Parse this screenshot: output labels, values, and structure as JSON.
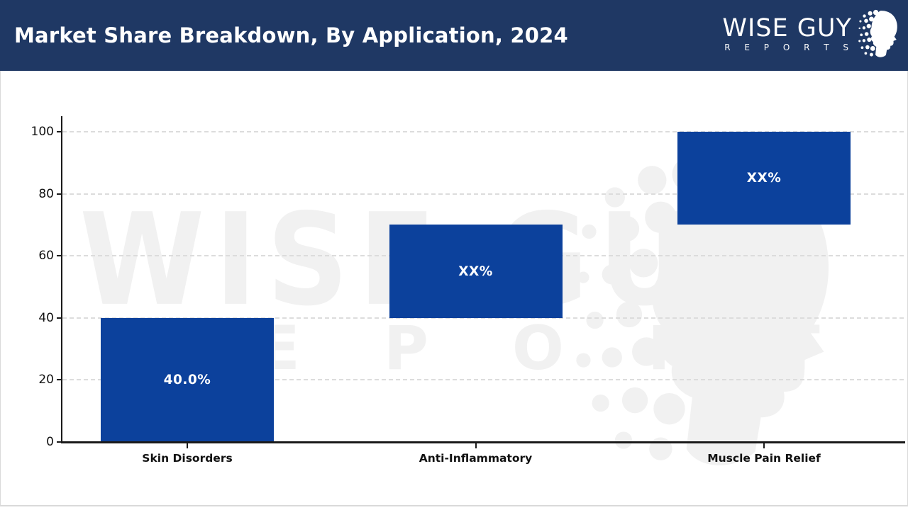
{
  "header": {
    "title": "Market Share Breakdown, By Application, 2024",
    "logo": {
      "wordmark": "WISE GUY",
      "subtext": "R E P O R T S"
    }
  },
  "watermark": {
    "line1": "WISE GUY",
    "line2": "R E P O R T S"
  },
  "chart_data": {
    "type": "bar",
    "subtype": "floating-waterfall",
    "title": "Market Share Breakdown, By Application, 2024",
    "categories": [
      "Skin Disorders",
      "Anti-Inflammatory",
      "Muscle Pain Relief"
    ],
    "segments": [
      {
        "category": "Skin Disorders",
        "start": 0,
        "end": 40,
        "label": "40.0%"
      },
      {
        "category": "Anti-Inflammatory",
        "start": 40,
        "end": 70,
        "label": "XX%"
      },
      {
        "category": "Muscle Pain Relief",
        "start": 70,
        "end": 100,
        "label": "XX%"
      }
    ],
    "values": [
      40,
      30,
      30
    ],
    "ylim": [
      0,
      100
    ],
    "yticks": [
      0,
      20,
      40,
      60,
      80,
      100
    ],
    "xlabel": "",
    "ylabel": "",
    "grid": "dashed-horizontal-only",
    "legend": "none"
  },
  "colors": {
    "header_bg": "#1f3864",
    "bar_fill": "#0c419c",
    "bar_label": "#ffffff",
    "watermark": "#f1f1f1",
    "grid_line": "#dcdcdc",
    "axis_line": "#1a1a1a",
    "page_border": "#d9d9d9"
  }
}
